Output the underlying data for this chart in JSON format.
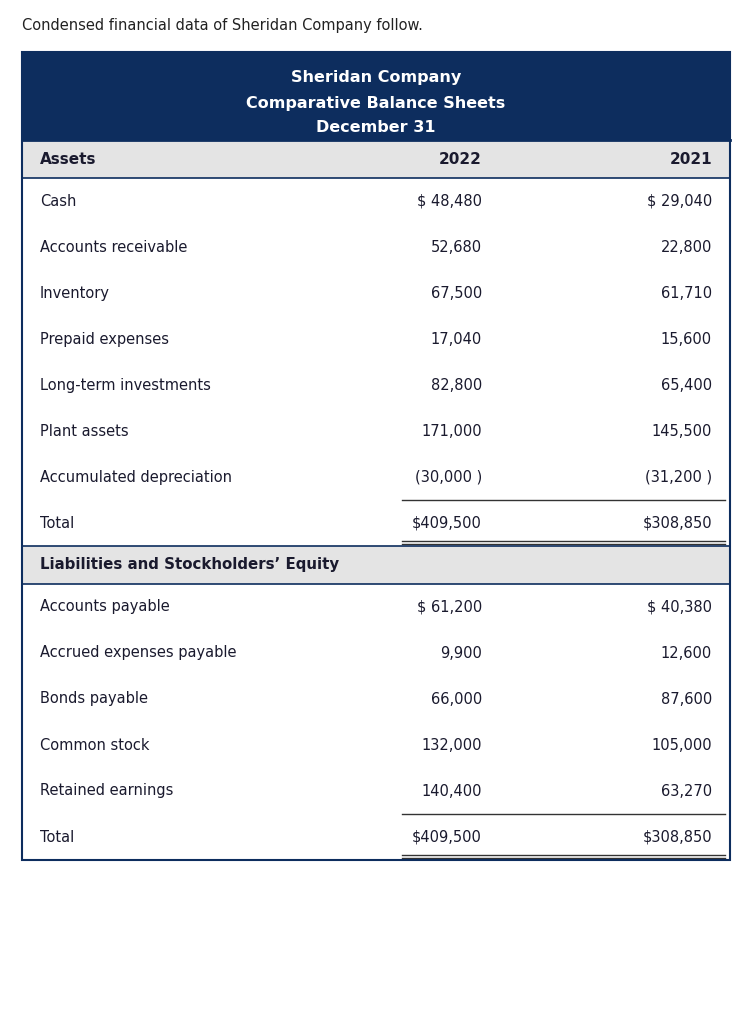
{
  "intro_text": "Condensed financial data of Sheridan Company follow.",
  "header_title_lines": [
    "Sheridan Company",
    "Comparative Balance Sheets",
    "December 31"
  ],
  "header_bg_color": "#0d2d5e",
  "header_text_color": "#ffffff",
  "section_bg_color": "#e4e4e4",
  "col_headers": [
    "Assets",
    "2022",
    "2021"
  ],
  "assets_rows": [
    [
      "Cash",
      "$ 48,480",
      "$ 29,040"
    ],
    [
      "Accounts receivable",
      "52,680",
      "22,800"
    ],
    [
      "Inventory",
      "67,500",
      "61,710"
    ],
    [
      "Prepaid expenses",
      "17,040",
      "15,600"
    ],
    [
      "Long-term investments",
      "82,800",
      "65,400"
    ],
    [
      "Plant assets",
      "171,000",
      "145,500"
    ],
    [
      "Accumulated depreciation",
      "(30,000 )",
      "(31,200 )"
    ]
  ],
  "assets_total_row": [
    "Total",
    "$409,500",
    "$308,850"
  ],
  "liab_header": "Liabilities and Stockholders’ Equity",
  "liab_rows": [
    [
      "Accounts payable",
      "$ 61,200",
      "$ 40,380"
    ],
    [
      "Accrued expenses payable",
      "9,900",
      "12,600"
    ],
    [
      "Bonds payable",
      "66,000",
      "87,600"
    ],
    [
      "Common stock",
      "132,000",
      "105,000"
    ],
    [
      "Retained earnings",
      "140,400",
      "63,270"
    ]
  ],
  "liab_total_row": [
    "Total",
    "$409,500",
    "$308,850"
  ],
  "table_border_color": "#0d2d5e",
  "line_color": "#333333",
  "text_color": "#1a1a2e",
  "figure_bg": "#ffffff",
  "intro_fontsize": 10.5,
  "header_fontsize": 11.5,
  "col_header_fontsize": 11.0,
  "body_fontsize": 10.5,
  "liab_header_fontsize": 10.8
}
